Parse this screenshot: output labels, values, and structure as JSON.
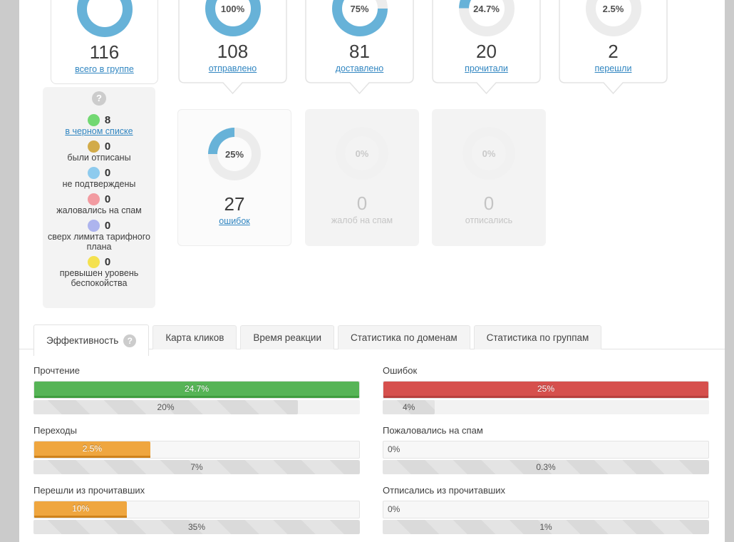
{
  "colors": {
    "donut_blue": "#67b2d8",
    "donut_track": "#ececec",
    "link_blue": "#3186c1",
    "bar_green": "#56b456",
    "bar_orange": "#efa63f",
    "bar_red": "#d6504d",
    "page_bg": "#ffffff",
    "surround_bg": "#cbcbcb"
  },
  "summary_cards": [
    {
      "value": "116",
      "label": "всего в группе",
      "percent_label": "",
      "percent": 100
    },
    {
      "value": "108",
      "label": "отправлено",
      "percent_label": "100%",
      "percent": 100
    },
    {
      "value": "81",
      "label": "доставлено",
      "percent_label": "75%",
      "percent": 75
    },
    {
      "value": "20",
      "label": "прочитали",
      "percent_label": "24.7%",
      "percent": 24.7
    },
    {
      "value": "2",
      "label": "перешли",
      "percent_label": "2.5%",
      "percent": 2.5
    }
  ],
  "group_box": {
    "help_icon": "?",
    "items": [
      {
        "count": "8",
        "label": "в черном списке",
        "color": "#72d872",
        "link": true
      },
      {
        "count": "0",
        "label": "были отписаны",
        "color": "#d2ab49",
        "link": false
      },
      {
        "count": "0",
        "label": "не подтверждены",
        "color": "#8ecbee",
        "link": false
      },
      {
        "count": "0",
        "label": "жаловались на спам",
        "color": "#f29ba1",
        "link": false
      },
      {
        "count": "0",
        "label": "сверх лимита тарифного плана",
        "color": "#adb4ee",
        "link": false
      },
      {
        "count": "0",
        "label": "превышен уровень беспокойства",
        "color": "#f4e14e",
        "link": false
      }
    ]
  },
  "secondary_cards": [
    {
      "value": "27",
      "label": "ошибок",
      "percent_label": "25%",
      "percent": 25,
      "disabled": false
    },
    {
      "value": "0",
      "label": "жалоб на спам",
      "percent_label": "0%",
      "percent": 0,
      "disabled": true
    },
    {
      "value": "0",
      "label": "отписались",
      "percent_label": "0%",
      "percent": 0,
      "disabled": true
    }
  ],
  "tabs": [
    {
      "label": "Эффективность",
      "active": true,
      "help_icon": "?"
    },
    {
      "label": "Карта кликов",
      "active": false
    },
    {
      "label": "Время реакции",
      "active": false
    },
    {
      "label": "Статистика по доменам",
      "active": false
    },
    {
      "label": "Статистика по группам",
      "active": false
    }
  ],
  "chart_data": {
    "type": "bar",
    "description": "Horizontal efficiency bars: colored bar = campaign value, striped gray bar = benchmark; widths are relative to the pair maximum.",
    "left": [
      {
        "title": "Прочтение",
        "value": 24.7,
        "value_label": "24.7%",
        "color": "green",
        "value_width": 100,
        "benchmark": 20,
        "benchmark_label": "20%",
        "benchmark_width": 81
      },
      {
        "title": "Переходы",
        "value": 2.5,
        "value_label": "2.5%",
        "color": "orange",
        "value_width": 35.7,
        "benchmark": 7,
        "benchmark_label": "7%",
        "benchmark_width": 100
      },
      {
        "title": "Перешли из прочитавших",
        "value": 10,
        "value_label": "10%",
        "color": "orange",
        "value_width": 28.6,
        "benchmark": 35,
        "benchmark_label": "35%",
        "benchmark_width": 100
      }
    ],
    "right": [
      {
        "title": "Ошибок",
        "value": 25,
        "value_label": "25%",
        "color": "red",
        "value_width": 100,
        "benchmark": 4,
        "benchmark_label": "4%",
        "benchmark_width": 16
      },
      {
        "title": "Пожаловались на спам",
        "value": 0,
        "value_label": "0%",
        "color": "red",
        "value_width": 0,
        "benchmark": 0.3,
        "benchmark_label": "0.3%",
        "benchmark_width": 100
      },
      {
        "title": "Отписались из прочитавших",
        "value": 0,
        "value_label": "0%",
        "color": "red",
        "value_width": 0,
        "benchmark": 1,
        "benchmark_label": "1%",
        "benchmark_width": 100
      }
    ]
  }
}
